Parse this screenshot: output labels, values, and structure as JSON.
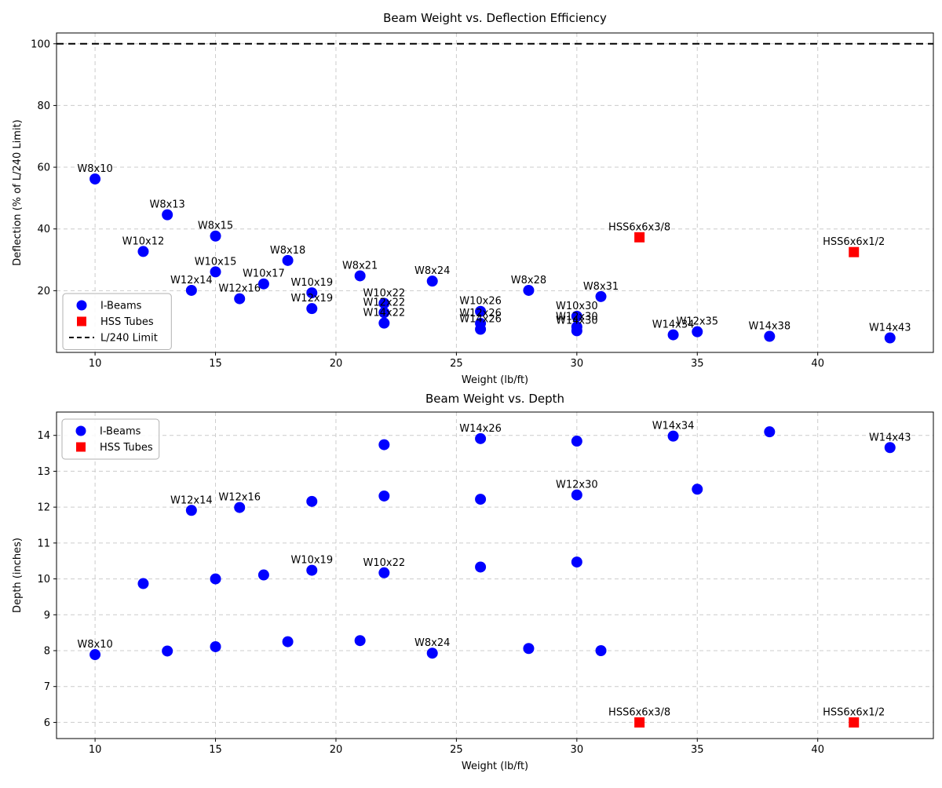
{
  "colors": {
    "i_beam": "#0000ff",
    "hss_tube": "#ff0000",
    "limit_line": "#000000",
    "grid": "#cccccc",
    "background": "#ffffff"
  },
  "chart_data": [
    {
      "type": "scatter",
      "title": "Beam Weight vs. Deflection Efficiency",
      "xlabel": "Weight (lb/ft)",
      "ylabel": "Deflection (% of L/240 Limit)",
      "xlim": [
        8.4,
        44.8
      ],
      "ylim": [
        0,
        103.5
      ],
      "xticks": [
        10,
        15,
        20,
        25,
        30,
        35,
        40
      ],
      "yticks": [
        20,
        40,
        60,
        80,
        100
      ],
      "grid": true,
      "limit_line": {
        "y": 100,
        "label": "L/240 Limit",
        "style": "dashed",
        "color": "#000000"
      },
      "legend": {
        "position": "lower left",
        "entries": [
          {
            "label": "I-Beams",
            "marker": "circle",
            "color": "#0000ff"
          },
          {
            "label": "HSS Tubes",
            "marker": "square",
            "color": "#ff0000"
          },
          {
            "label": "L/240 Limit",
            "marker": "dashed-line",
            "color": "#000000"
          }
        ]
      },
      "series": [
        {
          "name": "I-Beams",
          "marker": "circle",
          "color": "#0000ff",
          "points": [
            {
              "label": "W8x10",
              "x": 10,
              "y": 56.2,
              "show_label": true
            },
            {
              "label": "W10x12",
              "x": 12,
              "y": 32.7,
              "show_label": true
            },
            {
              "label": "W8x13",
              "x": 13,
              "y": 44.6,
              "show_label": true
            },
            {
              "label": "W12x14",
              "x": 14,
              "y": 20.1,
              "show_label": true
            },
            {
              "label": "W8x15",
              "x": 15,
              "y": 37.7,
              "show_label": true
            },
            {
              "label": "W10x15",
              "x": 15,
              "y": 26.1,
              "show_label": true
            },
            {
              "label": "W12x16",
              "x": 16,
              "y": 17.4,
              "show_label": true
            },
            {
              "label": "W10x17",
              "x": 17,
              "y": 22.2,
              "show_label": true
            },
            {
              "label": "W8x18",
              "x": 18,
              "y": 29.8,
              "show_label": true
            },
            {
              "label": "W10x19",
              "x": 19,
              "y": 19.3,
              "show_label": true
            },
            {
              "label": "W12x19",
              "x": 19,
              "y": 14.2,
              "show_label": true
            },
            {
              "label": "W8x21",
              "x": 21,
              "y": 24.8,
              "show_label": true
            },
            {
              "label": "W10x22",
              "x": 22,
              "y": 15.9,
              "show_label": true
            },
            {
              "label": "W12x22",
              "x": 22,
              "y": 12.9,
              "show_label": true
            },
            {
              "label": "W14x22",
              "x": 22,
              "y": 9.5,
              "show_label": true
            },
            {
              "label": "W8x24",
              "x": 24,
              "y": 23.1,
              "show_label": true
            },
            {
              "label": "W10x26",
              "x": 26,
              "y": 13.3,
              "show_label": true
            },
            {
              "label": "W12x26",
              "x": 26,
              "y": 9.4,
              "show_label": true
            },
            {
              "label": "W14x26",
              "x": 26,
              "y": 7.5,
              "show_label": true
            },
            {
              "label": "W8x28",
              "x": 28,
              "y": 20.1,
              "show_label": true
            },
            {
              "label": "W10x30",
              "x": 30,
              "y": 11.7,
              "show_label": true
            },
            {
              "label": "W12x30",
              "x": 30,
              "y": 8.3,
              "show_label": true
            },
            {
              "label": "W14x30",
              "x": 30,
              "y": 7.0,
              "show_label": true
            },
            {
              "label": "W8x31",
              "x": 31,
              "y": 18.1,
              "show_label": true
            },
            {
              "label": "W14x34",
              "x": 34,
              "y": 5.7,
              "show_label": true
            },
            {
              "label": "W12x35",
              "x": 35,
              "y": 6.7,
              "show_label": true
            },
            {
              "label": "W14x38",
              "x": 38,
              "y": 5.2,
              "show_label": true
            },
            {
              "label": "W14x43",
              "x": 43,
              "y": 4.7,
              "show_label": true
            }
          ]
        },
        {
          "name": "HSS Tubes",
          "marker": "square",
          "color": "#ff0000",
          "points": [
            {
              "label": "HSS6x6x3/8",
              "x": 32.6,
              "y": 37.3,
              "show_label": true
            },
            {
              "label": "HSS6x6x1/2",
              "x": 41.5,
              "y": 32.5,
              "show_label": true
            }
          ]
        }
      ]
    },
    {
      "type": "scatter",
      "title": "Beam Weight vs. Depth",
      "xlabel": "Weight (lb/ft)",
      "ylabel": "Depth (inches)",
      "xlim": [
        8.4,
        44.8
      ],
      "ylim": [
        5.55,
        14.65
      ],
      "xticks": [
        10,
        15,
        20,
        25,
        30,
        35,
        40
      ],
      "yticks": [
        6,
        7,
        8,
        9,
        10,
        11,
        12,
        13,
        14
      ],
      "grid": true,
      "legend": {
        "position": "upper left",
        "entries": [
          {
            "label": "I-Beams",
            "marker": "circle",
            "color": "#0000ff"
          },
          {
            "label": "HSS Tubes",
            "marker": "square",
            "color": "#ff0000"
          }
        ]
      },
      "series": [
        {
          "name": "I-Beams",
          "marker": "circle",
          "color": "#0000ff",
          "points": [
            {
              "label": "W8x10",
              "x": 10,
              "y": 7.89,
              "show_label": true
            },
            {
              "label": "W10x12",
              "x": 12,
              "y": 9.87,
              "show_label": false
            },
            {
              "label": "W8x13",
              "x": 13,
              "y": 7.99,
              "show_label": false
            },
            {
              "label": "W12x14",
              "x": 14,
              "y": 11.91,
              "show_label": true
            },
            {
              "label": "W8x15",
              "x": 15,
              "y": 8.11,
              "show_label": false
            },
            {
              "label": "W10x15",
              "x": 15,
              "y": 10.0,
              "show_label": false
            },
            {
              "label": "W12x16",
              "x": 16,
              "y": 11.99,
              "show_label": true
            },
            {
              "label": "W10x17",
              "x": 17,
              "y": 10.11,
              "show_label": false
            },
            {
              "label": "W8x18",
              "x": 18,
              "y": 8.25,
              "show_label": false
            },
            {
              "label": "W10x19",
              "x": 19,
              "y": 10.24,
              "show_label": true
            },
            {
              "label": "W12x19",
              "x": 19,
              "y": 12.16,
              "show_label": false
            },
            {
              "label": "W8x21",
              "x": 21,
              "y": 8.28,
              "show_label": false
            },
            {
              "label": "W10x22",
              "x": 22,
              "y": 10.17,
              "show_label": true
            },
            {
              "label": "W12x22",
              "x": 22,
              "y": 12.31,
              "show_label": false
            },
            {
              "label": "W14x22",
              "x": 22,
              "y": 13.74,
              "show_label": false
            },
            {
              "label": "W8x24",
              "x": 24,
              "y": 7.93,
              "show_label": true
            },
            {
              "label": "W10x26",
              "x": 26,
              "y": 10.33,
              "show_label": false
            },
            {
              "label": "W12x26",
              "x": 26,
              "y": 12.22,
              "show_label": false
            },
            {
              "label": "W14x26",
              "x": 26,
              "y": 13.91,
              "show_label": true
            },
            {
              "label": "W8x28",
              "x": 28,
              "y": 8.06,
              "show_label": false
            },
            {
              "label": "W10x30",
              "x": 30,
              "y": 10.47,
              "show_label": false
            },
            {
              "label": "W12x30",
              "x": 30,
              "y": 12.34,
              "show_label": true
            },
            {
              "label": "W14x30",
              "x": 30,
              "y": 13.84,
              "show_label": false
            },
            {
              "label": "W8x31",
              "x": 31,
              "y": 8.0,
              "show_label": false
            },
            {
              "label": "W14x34",
              "x": 34,
              "y": 13.98,
              "show_label": true
            },
            {
              "label": "W12x35",
              "x": 35,
              "y": 12.5,
              "show_label": false
            },
            {
              "label": "W14x38",
              "x": 38,
              "y": 14.1,
              "show_label": false
            },
            {
              "label": "W14x43",
              "x": 43,
              "y": 13.66,
              "show_label": true
            }
          ]
        },
        {
          "name": "HSS Tubes",
          "marker": "square",
          "color": "#ff0000",
          "points": [
            {
              "label": "HSS6x6x3/8",
              "x": 32.6,
              "y": 6.0,
              "show_label": true
            },
            {
              "label": "HSS6x6x1/2",
              "x": 41.5,
              "y": 6.0,
              "show_label": true
            }
          ]
        }
      ]
    }
  ]
}
